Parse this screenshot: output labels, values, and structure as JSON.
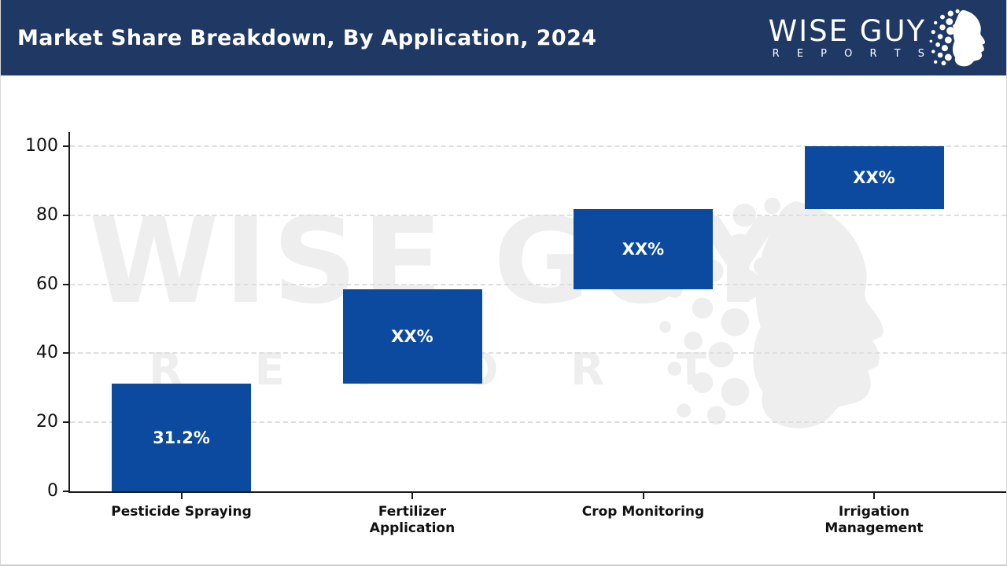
{
  "header": {
    "title": "Market Share Breakdown, By Application, 2024",
    "bg_color": "#1f3864",
    "logo": {
      "line1": "WISE GUY",
      "line2": "R E P O R T S"
    }
  },
  "watermark": {
    "line1": "WISE GUY",
    "line2": "R E P O R T S"
  },
  "chart_data": {
    "type": "bar",
    "subtype": "waterfall",
    "title": "Market Share Breakdown, By Application, 2024",
    "categories": [
      "Pesticide Spraying",
      "Fertilizer\nApplication",
      "Crop Monitoring",
      "Irrigation\nManagement"
    ],
    "segments": [
      {
        "category": "Pesticide Spraying",
        "label": "31.2%",
        "start": 0,
        "end": 31.2
      },
      {
        "category": "Fertilizer Application",
        "label": "XX%",
        "start": 31.2,
        "end": 58.5
      },
      {
        "category": "Crop Monitoring",
        "label": "XX%",
        "start": 58.5,
        "end": 81.8
      },
      {
        "category": "Irrigation Management",
        "label": "XX%",
        "start": 81.8,
        "end": 100
      }
    ],
    "xlabel": "",
    "ylabel": "",
    "ylim": [
      0,
      100
    ],
    "yticks": [
      0,
      20,
      40,
      60,
      80,
      100
    ],
    "grid": "horizontal-dashed",
    "legend": "none",
    "bar_color": "#0b4a9e",
    "bar_label_color": "#ffffff",
    "axis_color": "#1a1a1a",
    "gridline_color": "#dedede"
  }
}
